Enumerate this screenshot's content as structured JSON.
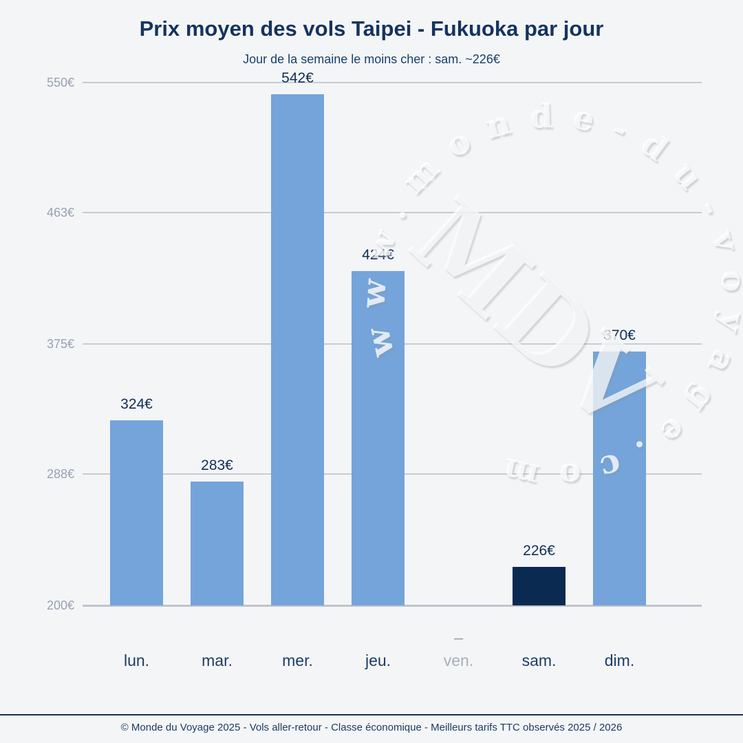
{
  "title": "Prix moyen des vols Taipei - Fukuoka par jour",
  "subtitle": "Jour de la semaine le moins cher : sam. ~226€",
  "watermark": {
    "circle_text": "www.monde-du-voyage.com",
    "center_text": "MDV"
  },
  "footer": {
    "text": "© Monde du Voyage 2025 - Vols aller-retour - Classe économique - Meilleurs tarifs TTC observés 2025 / 2026"
  },
  "chart_data": {
    "type": "bar",
    "title": "Prix moyen des vols Taipei - Fukuoka par jour",
    "subtitle": "Jour de la semaine le moins cher : sam. ~226€",
    "categories": [
      "lun.",
      "mar.",
      "mer.",
      "jeu.",
      "ven.",
      "sam.",
      "dim."
    ],
    "values": [
      324,
      283,
      542,
      424,
      null,
      226,
      370
    ],
    "value_labels": [
      "324€",
      "283€",
      "542€",
      "424€",
      "–",
      "226€",
      "370€"
    ],
    "xlabel": "",
    "ylabel": "",
    "ylim": [
      200,
      550
    ],
    "yticks": [
      550,
      463,
      375,
      288,
      200
    ],
    "ytick_labels": [
      "550€",
      "463€",
      "375€",
      "288€",
      "200€"
    ],
    "grid": true,
    "legend": false,
    "missing_index": 4,
    "highlight_index": 5,
    "colors": {
      "background": "#f4f5f6",
      "bar": "#74a4da",
      "bar_highlight": "#0a2a52",
      "grid": "#c7cbd4",
      "baseline": "#bfc3cb",
      "tick_label": "#98a1b3",
      "value_label": "#112e57",
      "category_label": "#1c3d66",
      "category_label_muted": "#a9afbc",
      "title": "#14345e",
      "footer_line": "#1b2f52"
    }
  }
}
